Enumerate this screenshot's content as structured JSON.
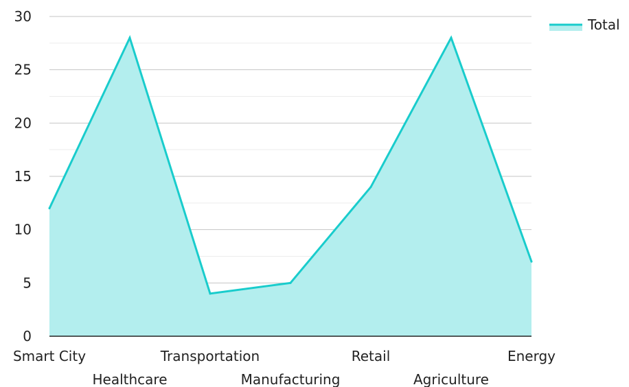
{
  "chart_data": {
    "type": "area",
    "categories": [
      "Smart City",
      "Healthcare",
      "Transportation",
      "Manufacturing",
      "Retail",
      "Agriculture",
      "Energy"
    ],
    "series": [
      {
        "name": "Total",
        "values": [
          12,
          28,
          4,
          5,
          14,
          28,
          7
        ]
      }
    ],
    "ylim": [
      0,
      30
    ],
    "yticks": [
      "0",
      "5",
      "10",
      "15",
      "20",
      "25",
      "30"
    ],
    "grid": true,
    "legend": "top-right",
    "colors": {
      "line": "#19cccc",
      "fill": "#b3eeee"
    }
  }
}
